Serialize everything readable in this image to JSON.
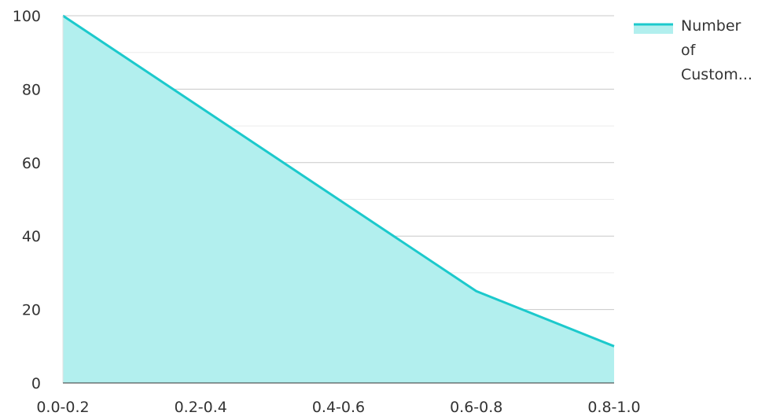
{
  "chart_data": {
    "type": "area",
    "categories": [
      "0.0-0.2",
      "0.2-0.4",
      "0.4-0.6",
      "0.6-0.8",
      "0.8-1.0"
    ],
    "series": [
      {
        "name": "Number of Custom...",
        "values": [
          100,
          75,
          50,
          25,
          10
        ]
      }
    ],
    "yticks": [
      0,
      20,
      40,
      60,
      80,
      100
    ],
    "ylim": [
      0,
      100
    ],
    "grid": true,
    "legend": "right",
    "colors": {
      "line": "#1cc9cc",
      "fill": "#b2efee",
      "grid_major": "#c8c8c8",
      "grid_minor": "#ebebeb",
      "text": "#333333"
    }
  },
  "legend": {
    "lines": [
      "Number",
      "of",
      "Custom..."
    ]
  }
}
